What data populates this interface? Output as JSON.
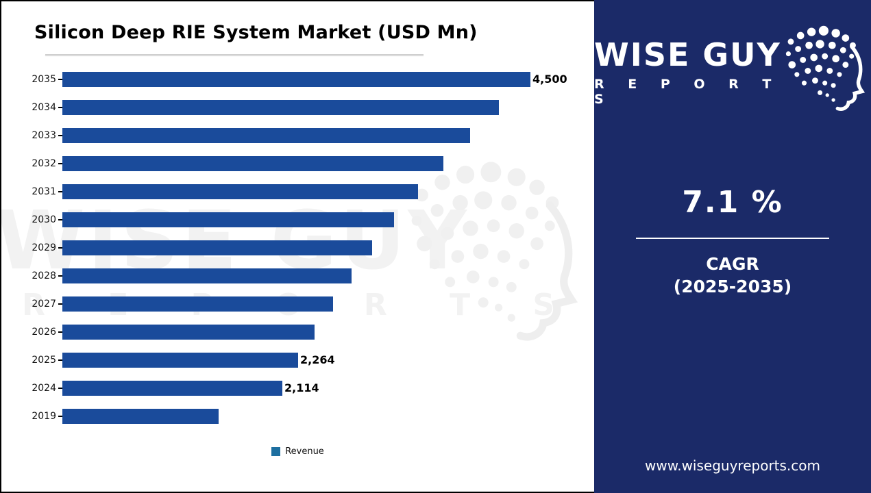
{
  "chart_data": {
    "type": "bar",
    "orientation": "horizontal",
    "title": "Silicon Deep RIE System Market (USD Mn)",
    "unit": "USD Mn",
    "legend": "Revenue",
    "categories": [
      "2035",
      "2034",
      "2033",
      "2032",
      "2031",
      "2030",
      "2029",
      "2028",
      "2027",
      "2026",
      "2025",
      "2024",
      "2019"
    ],
    "values": [
      4500,
      4200,
      3920,
      3660,
      3420,
      3190,
      2980,
      2780,
      2600,
      2425,
      2264,
      2114,
      1500
    ],
    "value_labels": [
      "4,500",
      "",
      "",
      "",
      "",
      "",
      "",
      "",
      "",
      "",
      "2,264",
      "2,114",
      ""
    ],
    "xlim": [
      0,
      4800
    ],
    "axis_max_for_scale": 4500,
    "grid": false,
    "legend_position": "bottom-center"
  },
  "brand": {
    "line1": "WISE GUY",
    "line2": "R E P O R T S",
    "head_icon": "dotted-head-profile-icon"
  },
  "watermark": {
    "line1": "WISE GUY",
    "line2": "R E P O R T S"
  },
  "side_panel": {
    "cagr_value": "7.1 %",
    "cagr_label": "CAGR",
    "cagr_range": "(2025-2035)",
    "website": "www.wiseguyreports.com"
  },
  "colors": {
    "bar": "#1a4b9b",
    "side_bg": "#1b2a68",
    "legend_swatch": "#1d6fa0",
    "watermark": "#f2f2f2",
    "title_text": "#000000",
    "value_label_text": "#000000"
  }
}
